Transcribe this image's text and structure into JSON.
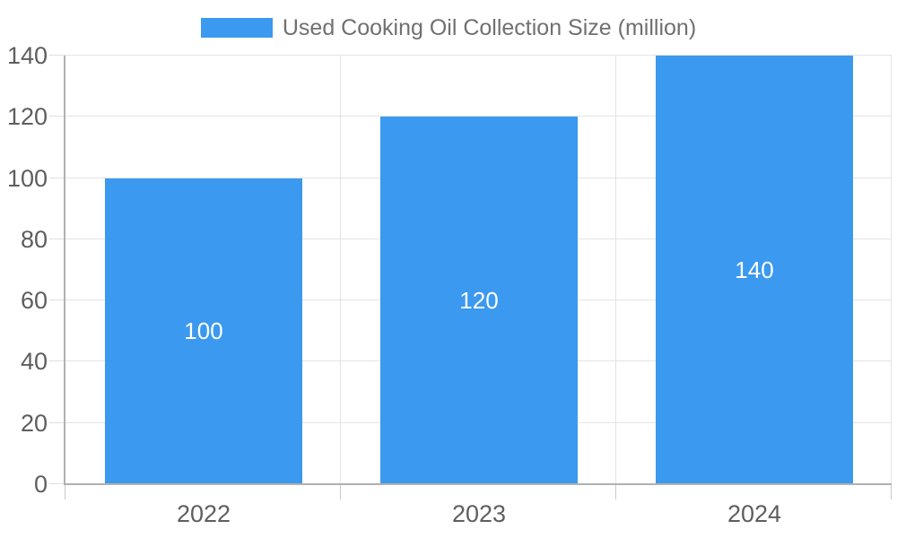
{
  "chart_data": {
    "type": "bar",
    "title": "",
    "legend": {
      "label": "Used Cooking Oil Collection Size (million)",
      "position": "top-center"
    },
    "categories": [
      "2022",
      "2023",
      "2024"
    ],
    "values": [
      100,
      120,
      140
    ],
    "series": [
      {
        "name": "Used Cooking Oil Collection Size (million)",
        "values": [
          100,
          120,
          140
        ]
      }
    ],
    "xlabel": "",
    "ylabel": "",
    "ylim": [
      0,
      140
    ],
    "yticks": [
      0,
      20,
      40,
      60,
      80,
      100,
      120,
      140
    ],
    "grid": "horizontal and vertical category-boundary gridlines, ticks outside axes",
    "data_labels": {
      "position": "inside-center",
      "values": [
        "100",
        "120",
        "140"
      ]
    },
    "colors": {
      "bar": "#3b99ef",
      "gridline": "#e4e4e4",
      "axis_line": "#b0b0b0",
      "tick_x": "#c9c9c9",
      "tick_y": "#e0e0e0",
      "axis_text": "#5e5e5e",
      "legend_text": "#707070",
      "data_label_text": "#ffffff",
      "background": "#ffffff"
    }
  }
}
